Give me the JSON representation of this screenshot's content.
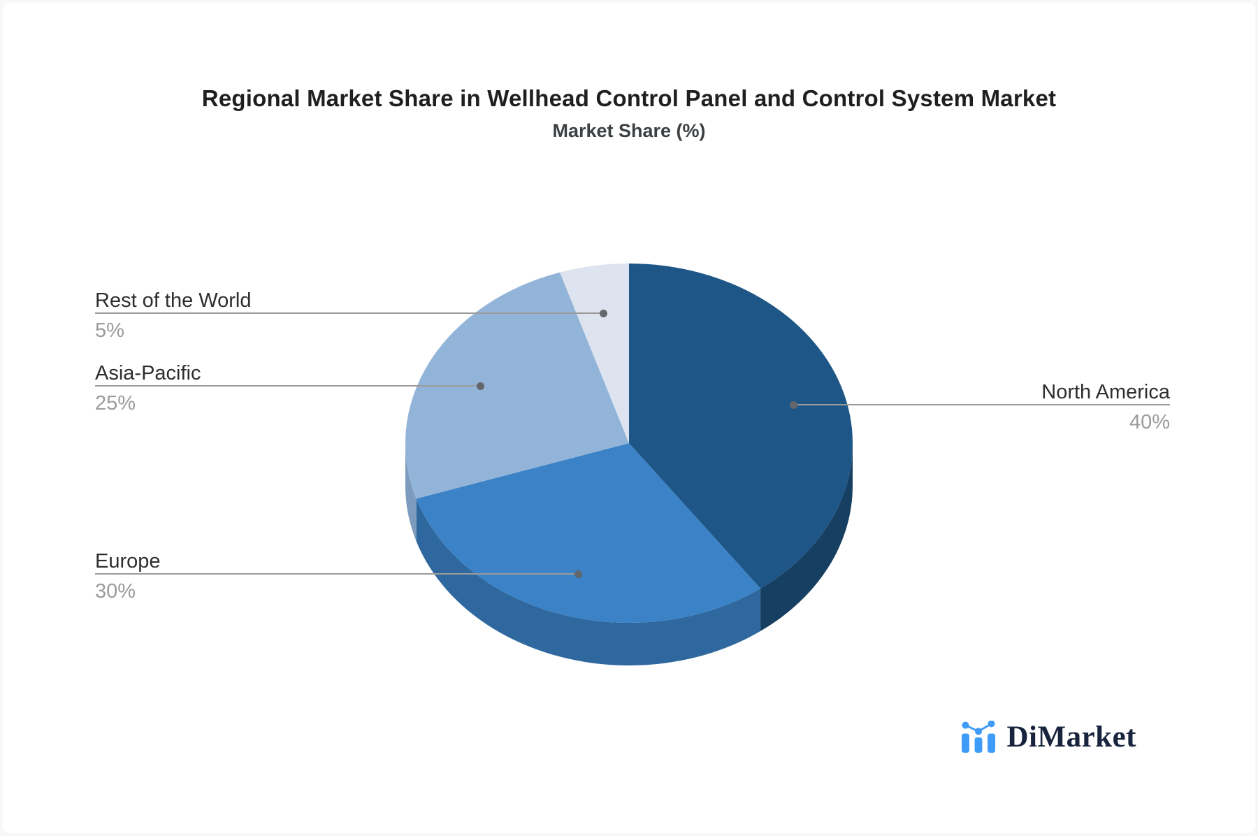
{
  "header": {
    "title": "Regional Market Share in Wellhead Control Panel and Control System Market",
    "subtitle": "Market Share (%)"
  },
  "chart_data": {
    "type": "pie",
    "style": "3d",
    "title": "Regional Market Share in Wellhead Control Panel and Control System Market",
    "subtitle": "Market Share (%)",
    "unit": "%",
    "start_angle_deg": 0,
    "direction": "clockwise",
    "legend_position": "leader-line-callouts",
    "slices": [
      {
        "label": "North America",
        "value": 40,
        "value_label": "40%",
        "color": "#1d5687",
        "side_color": "#163f61"
      },
      {
        "label": "Europe",
        "value": 30,
        "value_label": "30%",
        "color": "#3b82c6",
        "side_color": "#2e689f"
      },
      {
        "label": "Asia-Pacific",
        "value": 25,
        "value_label": "25%",
        "color": "#93b4d9",
        "side_color": "#7d9cbd"
      },
      {
        "label": "Rest of the World",
        "value": 5,
        "value_label": "5%",
        "color": "#dde4ef",
        "side_color": "#c3cede"
      }
    ],
    "callout_line_color": "#9b9b9b",
    "callout_dot_color": "#63666a"
  },
  "footer": {
    "brand": "DiMarket",
    "brand_icon": "bar-line-chart-icon",
    "brand_icon_color": "#3e9bf7",
    "brand_text_color": "#18243d"
  }
}
